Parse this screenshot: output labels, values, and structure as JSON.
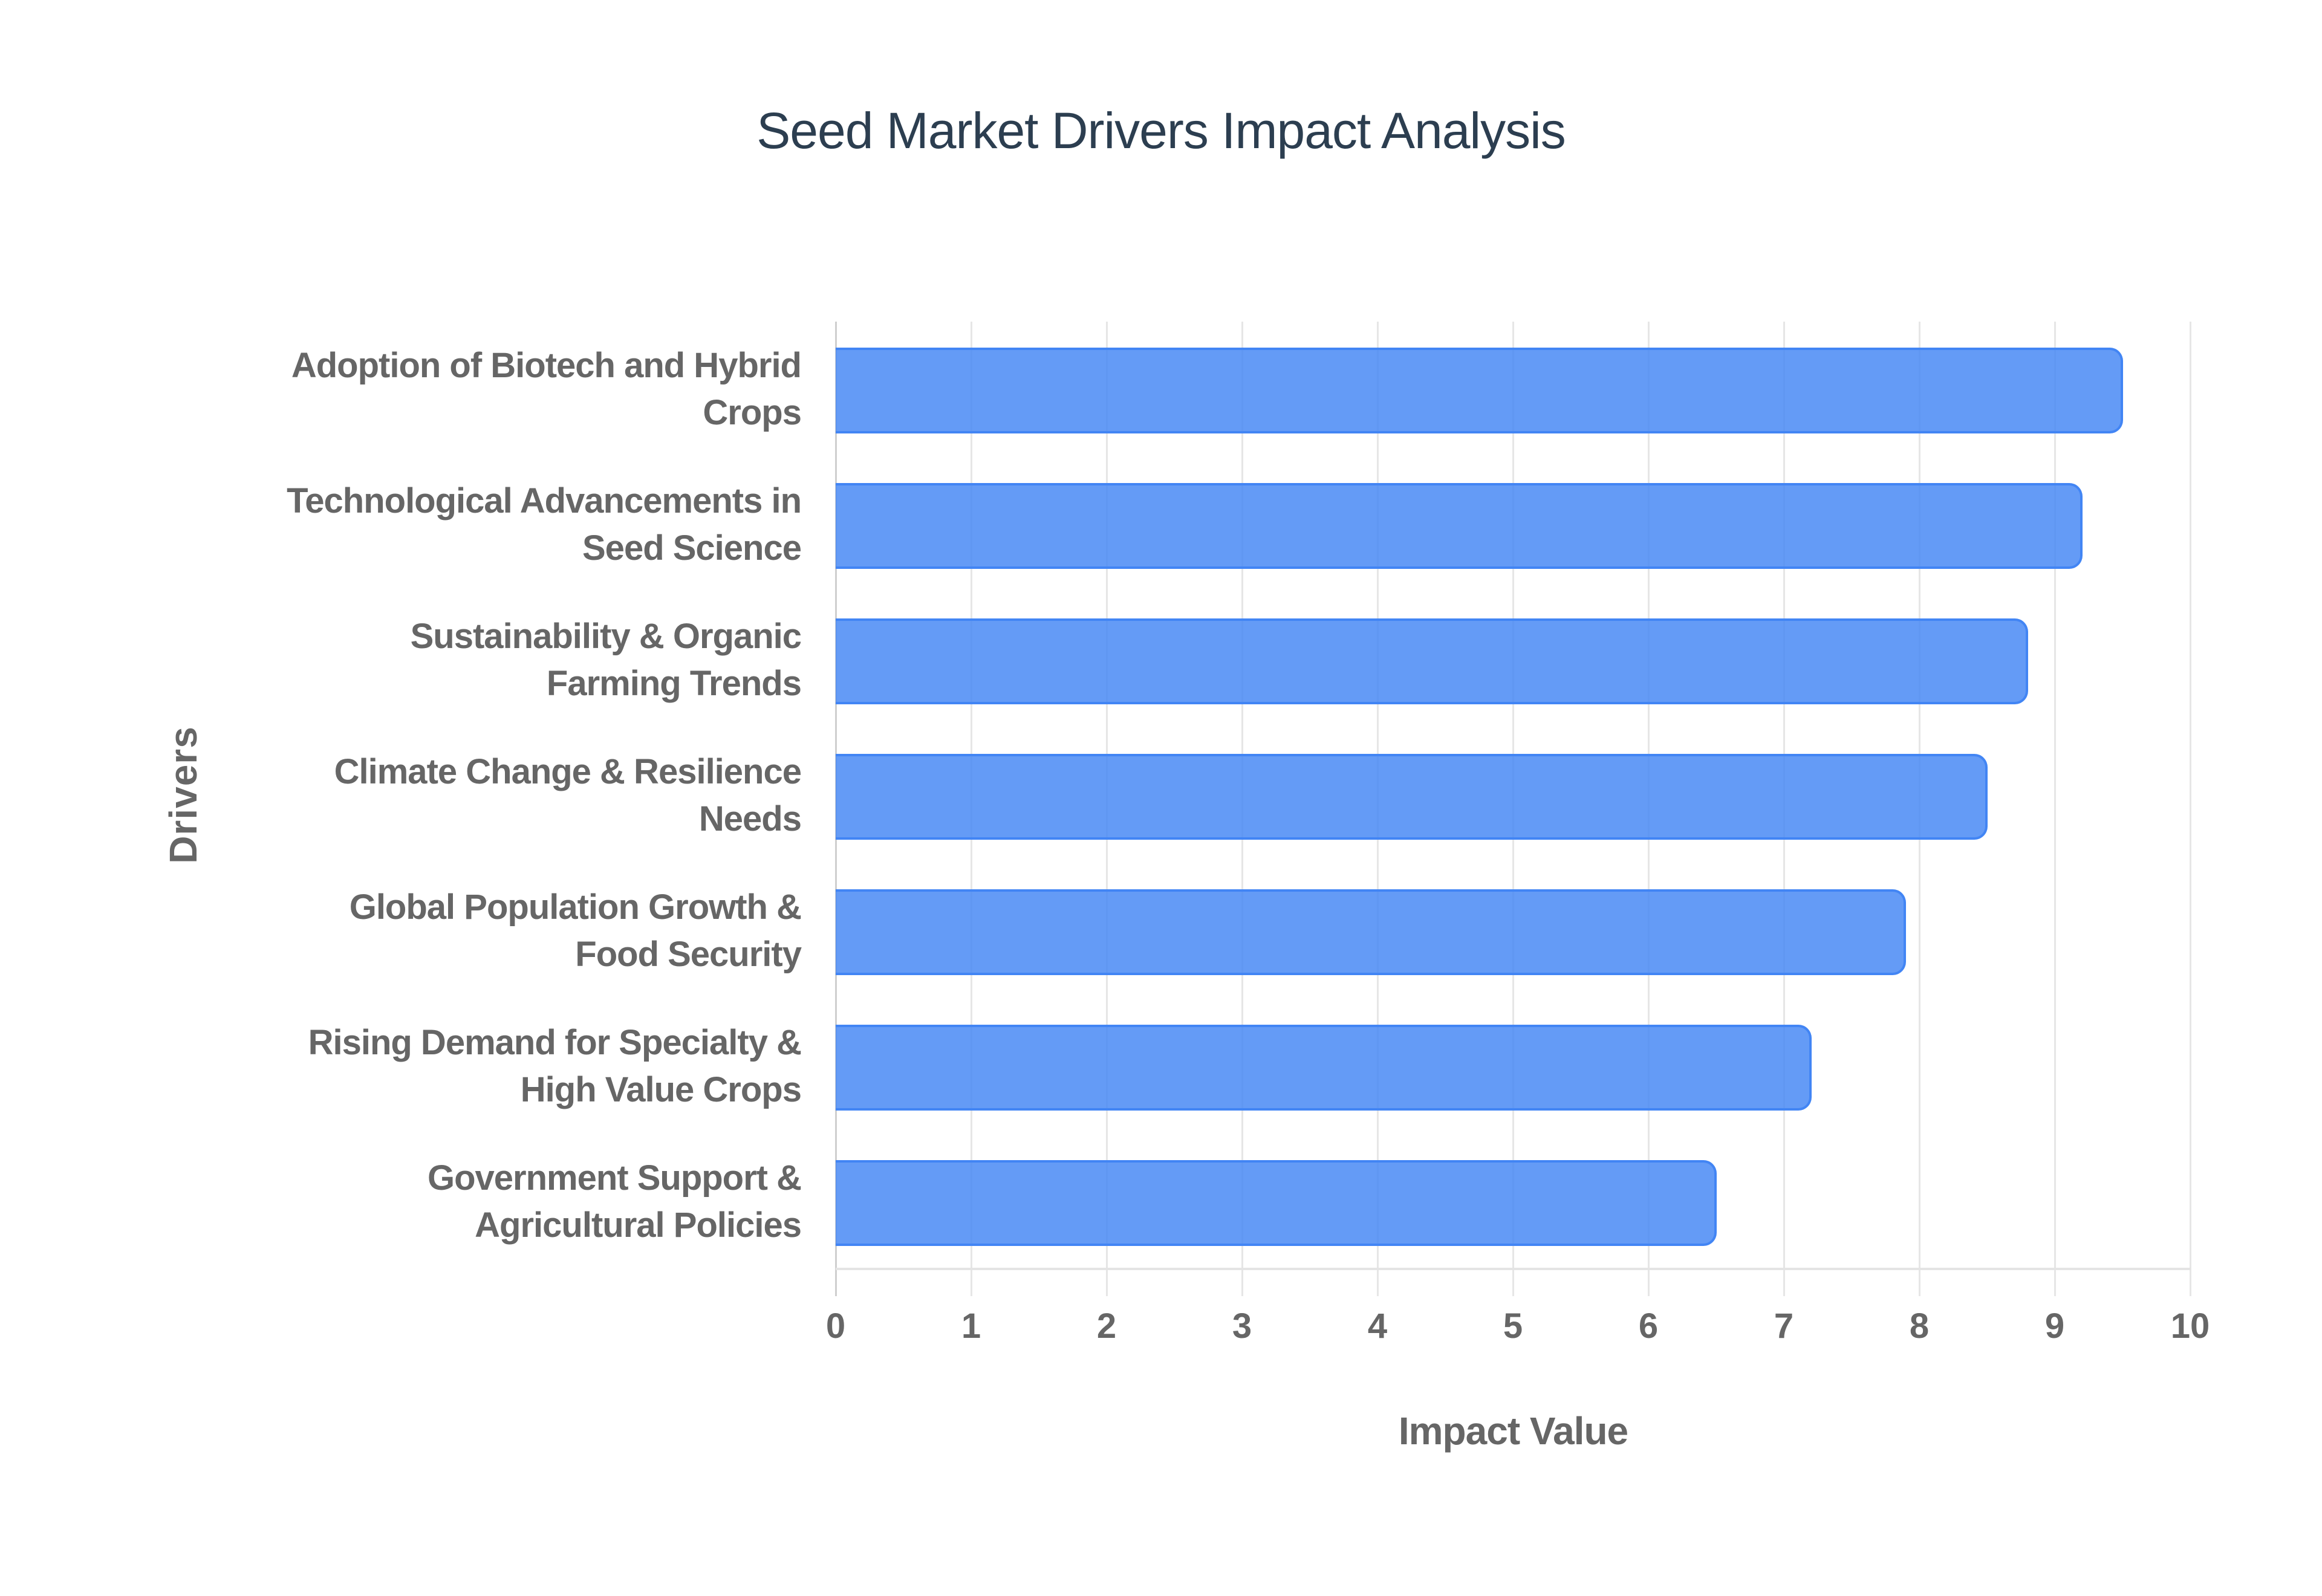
{
  "title": "Seed Market Drivers Impact Analysis",
  "colors": {
    "bar_fill": "#5f97f5",
    "bar_border": "#4285f4",
    "title": "#2c3e50",
    "axis_text": "#666666",
    "gridline": "#e6e6e6"
  },
  "axes": {
    "x_title": "Impact Value",
    "y_title": "Drivers",
    "x_ticks": [
      "0",
      "1",
      "2",
      "3",
      "4",
      "5",
      "6",
      "7",
      "8",
      "9",
      "10"
    ]
  },
  "bars": [
    {
      "label_line1": "Adoption of Biotech and Hybrid",
      "label_line2": "Crops",
      "value": 9.5
    },
    {
      "label_line1": "Technological Advancements in",
      "label_line2": "Seed Science",
      "value": 9.2
    },
    {
      "label_line1": "Sustainability & Organic",
      "label_line2": "Farming Trends",
      "value": 8.8
    },
    {
      "label_line1": "Climate Change & Resilience",
      "label_line2": "Needs",
      "value": 8.5
    },
    {
      "label_line1": "Global Population Growth &",
      "label_line2": "Food Security",
      "value": 7.9
    },
    {
      "label_line1": "Rising Demand for Specialty &",
      "label_line2": "High Value Crops",
      "value": 7.2
    },
    {
      "label_line1": "Government Support &",
      "label_line2": "Agricultural Policies",
      "value": 6.5
    }
  ],
  "chart_data": {
    "type": "bar",
    "orientation": "horizontal",
    "title": "Seed Market Drivers Impact Analysis",
    "xlabel": "Impact Value",
    "ylabel": "Drivers",
    "categories": [
      "Adoption of Biotech and Hybrid Crops",
      "Technological Advancements in Seed Science",
      "Sustainability & Organic Farming Trends",
      "Climate Change & Resilience Needs",
      "Global Population Growth & Food Security",
      "Rising Demand for Specialty & High Value Crops",
      "Government Support & Agricultural Policies"
    ],
    "values": [
      9.5,
      9.2,
      8.8,
      8.5,
      7.9,
      7.2,
      6.5
    ],
    "xlim": [
      0,
      10
    ],
    "x_ticks": [
      0,
      1,
      2,
      3,
      4,
      5,
      6,
      7,
      8,
      9,
      10
    ],
    "grid": {
      "vertical": true,
      "horizontal": false
    },
    "legend": "none",
    "series_color": "#4285f4"
  }
}
